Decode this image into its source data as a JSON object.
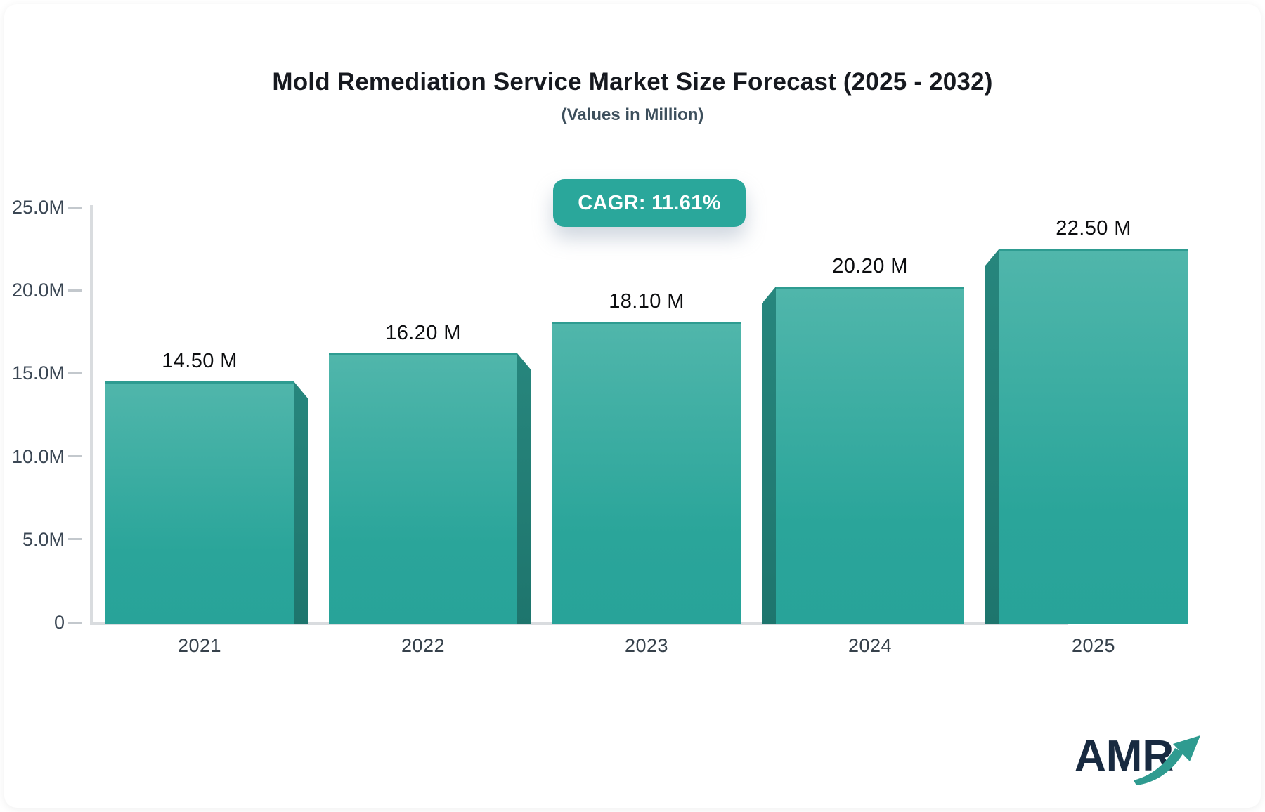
{
  "header": {
    "title": "Mold Remediation Service Market Size Forecast (2025 - 2032)",
    "subtitle": "(Values in Million)"
  },
  "badge": {
    "label": "CAGR: 11.61%"
  },
  "logo": {
    "text": "AMR"
  },
  "colors": {
    "badge_bg": "#2aa79b",
    "bar_top": "#50b6ab",
    "bar_bottom": "#28a399",
    "bar_side": "#1e7a72",
    "axis": "#d9dcdf",
    "tick_text": "#3b4754",
    "title_text": "#16191f",
    "subtitle_text": "#3d4f5c",
    "logo_navy": "#182a40",
    "logo_teal": "#2f9b90"
  },
  "chart_data": {
    "type": "bar",
    "title": "Mold Remediation Service Market Size Forecast (2025 - 2032)",
    "subtitle": "(Values in Million)",
    "unit": "Million",
    "annotation": "CAGR: 11.61%",
    "categories": [
      "2021",
      "2022",
      "2023",
      "2024",
      "2025"
    ],
    "values": [
      14.5,
      16.2,
      18.1,
      20.2,
      22.5
    ],
    "bar_labels": [
      "14.50 M",
      "16.20 M",
      "18.10 M",
      "20.20 M",
      "22.50 M"
    ],
    "ylim": [
      0,
      25
    ],
    "yticks": [
      {
        "label": "25.0M",
        "value": 25
      },
      {
        "label": "20.0M",
        "value": 20
      },
      {
        "label": "15.0M",
        "value": 15
      },
      {
        "label": "10.0M",
        "value": 10
      },
      {
        "label": "5.0M",
        "value": 5
      },
      {
        "label": "0",
        "value": 0
      }
    ],
    "grid": false,
    "legend": false,
    "bar_color_gradient": [
      "#50b6ab",
      "#28a399"
    ],
    "bar_side_color": "#1e7a72"
  }
}
